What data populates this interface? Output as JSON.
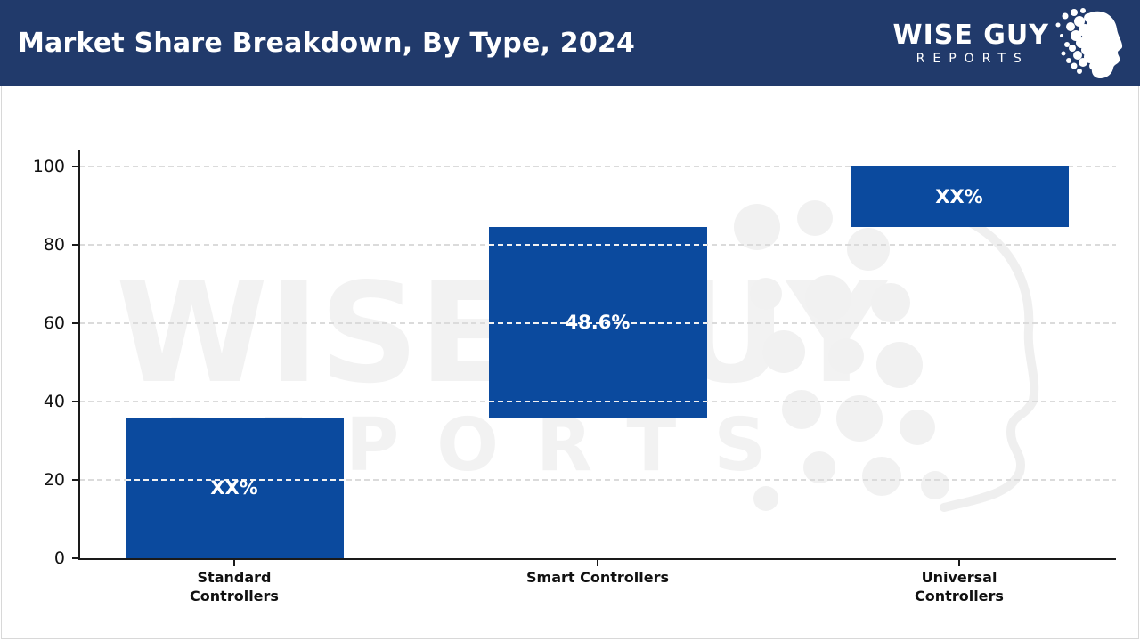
{
  "header": {
    "title": "Market Share Breakdown, By Type, 2024",
    "logo": {
      "primary": "WISE GUY",
      "secondary": "REPORTS",
      "face_icon": "dotted-face-profile"
    }
  },
  "watermark": {
    "primary": "WISE GUY",
    "secondary": "REPORTS",
    "face_icon": "dotted-face-profile"
  },
  "chart_data": {
    "type": "bar",
    "subtype": "waterfall",
    "title": "Market Share Breakdown, By Type, 2024",
    "categories": [
      "Standard Controllers",
      "Smart Controllers",
      "Universal Controllers"
    ],
    "category_label_lines": [
      [
        "Standard",
        "Controllers"
      ],
      [
        "Smart Controllers"
      ],
      [
        "Universal",
        "Controllers"
      ]
    ],
    "series": [
      {
        "name": "Market Share (%)",
        "starts": [
          0,
          36,
          84.6
        ],
        "values": [
          36,
          48.6,
          15.4
        ],
        "ends": [
          36,
          84.6,
          100
        ],
        "labels": [
          "XX%",
          "48.6%",
          "XX%"
        ]
      }
    ],
    "xlabel": "",
    "ylabel": "",
    "ylim": [
      0,
      104
    ],
    "yticks": [
      0,
      20,
      40,
      60,
      80,
      100
    ],
    "grid": "dashed-horizontal",
    "legend": "none"
  },
  "colors": {
    "header_bg": "#213A6B",
    "title_text": "#FFFFFF",
    "bar": "#0B4A9E",
    "bar_label": "#FFFFFF",
    "grid": "#DBDBDB",
    "grid_on_bar": "#F2F2F2",
    "axis": "#1A1A1A",
    "tick_text": "#111111",
    "watermark": "#F2F2F2",
    "figure_border": "#D8D8D8"
  }
}
